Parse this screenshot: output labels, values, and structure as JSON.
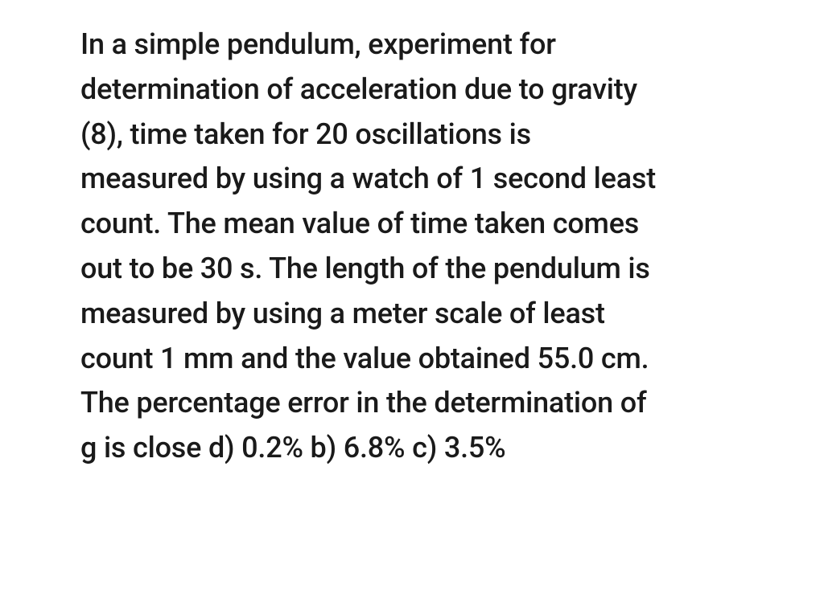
{
  "question": {
    "text": "In a simple pendulum, experiment for determination of acceleration due to gravity (8), time taken for 20 oscillations is measured by using a watch of 1 second least count. The mean value of time taken comes out to be 30 s. The length of the pendulum is measured by using a meter scale of least count 1 mm and the value obtained 55.0 cm. The percentage error in the determination of g is close d) 0.2% b) 6.8% c) 3.5%",
    "text_color": "#1a1a1a",
    "background_color": "#ffffff",
    "font_size": 36,
    "font_weight": 500,
    "line_height": 1.55
  }
}
